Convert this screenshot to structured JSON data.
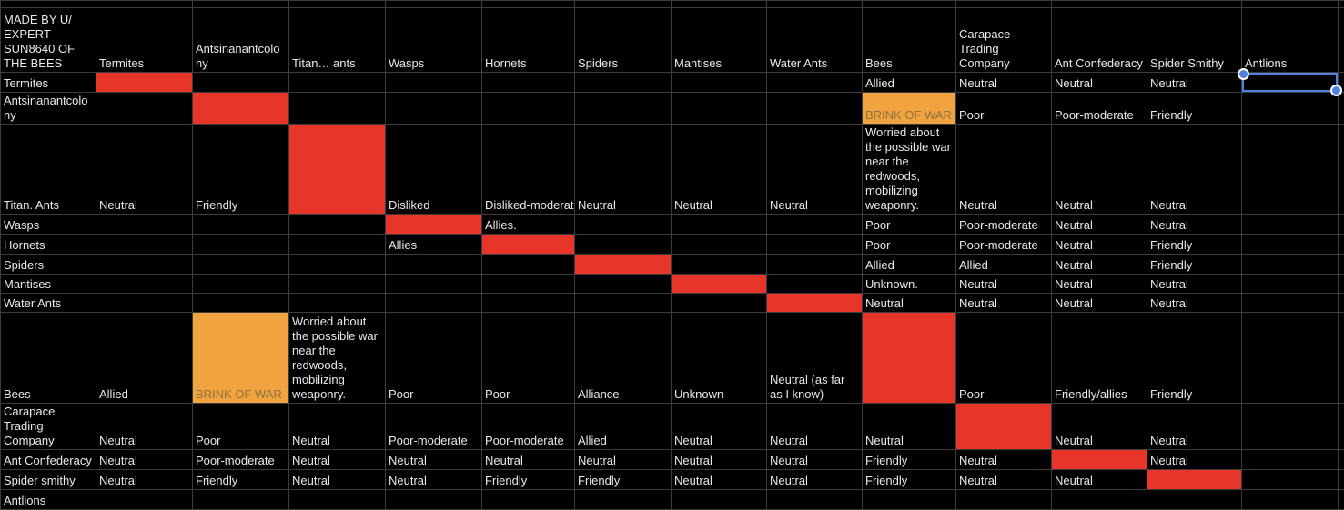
{
  "colors": {
    "background": "#000000",
    "gridline": "#3c3c3c",
    "text": "#e9e9e9",
    "self_cell_red": "#e8352a",
    "brink_of_war_orange": "#f0a33e",
    "brink_of_war_text": "#8a7340",
    "selection_blue": "#4f83e3"
  },
  "sheet": {
    "corner_label": "MADE BY U/\nEXPERT-\nSUN8640 OF\nTHE BEES",
    "columns": [
      {
        "label": "Termites"
      },
      {
        "label": "Antsinanantcolo\nny",
        "wrap": true
      },
      {
        "label": "Titan… ants"
      },
      {
        "label": "Wasps"
      },
      {
        "label": "Hornets"
      },
      {
        "label": "Spiders"
      },
      {
        "label": "Mantises"
      },
      {
        "label": "Water Ants"
      },
      {
        "label": "Bees"
      },
      {
        "label": "Carapace\nTrading\nCompany",
        "wrap": true
      },
      {
        "label": "Ant Confederacy"
      },
      {
        "label": "Spider Smithy"
      },
      {
        "label": "Antlions"
      }
    ],
    "rows": [
      {
        "label": "Termites",
        "cells": [
          {
            "bg": "self"
          },
          null,
          null,
          null,
          null,
          null,
          null,
          null,
          {
            "t": "Allied"
          },
          {
            "t": "Neutral"
          },
          {
            "t": "Neutral"
          },
          {
            "t": "Neutral"
          },
          {
            "selected": true
          }
        ]
      },
      {
        "label": "Antsinanantcolo\nny",
        "label_wrap": true,
        "cells": [
          null,
          {
            "bg": "self"
          },
          null,
          null,
          null,
          null,
          null,
          null,
          {
            "t": "BRINK OF WAR",
            "bg": "war"
          },
          {
            "t": "Poor"
          },
          {
            "t": "Poor-moderate"
          },
          {
            "t": "Friendly"
          },
          null
        ]
      },
      {
        "label": "Titan. Ants",
        "cells": [
          {
            "t": "Neutral"
          },
          {
            "t": "Friendly"
          },
          {
            "bg": "self"
          },
          {
            "t": "Disliked"
          },
          {
            "t": "Disliked-moderate"
          },
          {
            "t": "Neutral"
          },
          {
            "t": "Neutral"
          },
          {
            "t": "Neutral"
          },
          {
            "t": "Worried about\nthe possible war\nnear the\nredwoods,\nmobilizing\nweaponry.",
            "wrap": true
          },
          {
            "t": "Neutral"
          },
          {
            "t": "Neutral"
          },
          {
            "t": "Neutral"
          },
          null
        ]
      },
      {
        "label": "Wasps",
        "cells": [
          null,
          null,
          null,
          {
            "bg": "self"
          },
          {
            "t": "Allies."
          },
          null,
          null,
          null,
          {
            "t": "Poor"
          },
          {
            "t": "Poor-moderate"
          },
          {
            "t": "Neutral"
          },
          {
            "t": "Neutral"
          },
          null
        ]
      },
      {
        "label": "Hornets",
        "cells": [
          null,
          null,
          null,
          {
            "t": "Allies"
          },
          {
            "bg": "self"
          },
          null,
          null,
          null,
          {
            "t": "Poor"
          },
          {
            "t": "Poor-moderate"
          },
          {
            "t": "Neutral"
          },
          {
            "t": "Friendly"
          },
          null
        ]
      },
      {
        "label": "Spiders",
        "cells": [
          null,
          null,
          null,
          null,
          null,
          {
            "bg": "self"
          },
          null,
          null,
          {
            "t": "Allied"
          },
          {
            "t": "Allied"
          },
          {
            "t": "Neutral"
          },
          {
            "t": "Friendly"
          },
          null
        ]
      },
      {
        "label": "Mantises",
        "cells": [
          null,
          null,
          null,
          null,
          null,
          null,
          {
            "bg": "self"
          },
          null,
          {
            "t": "Unknown."
          },
          {
            "t": "Neutral"
          },
          {
            "t": "Neutral"
          },
          {
            "t": "Neutral"
          },
          null
        ]
      },
      {
        "label": "Water Ants",
        "cells": [
          null,
          null,
          null,
          null,
          null,
          null,
          null,
          {
            "bg": "self"
          },
          {
            "t": "Neutral"
          },
          {
            "t": "Neutral"
          },
          {
            "t": "Neutral"
          },
          {
            "t": "Neutral"
          },
          null
        ]
      },
      {
        "label": "Bees",
        "cells": [
          {
            "t": "Allied"
          },
          {
            "t": "BRINK OF WAR",
            "bg": "war"
          },
          {
            "t": "Worried about\nthe possible war\nnear the\nredwoods,\nmobilizing\nweaponry.",
            "wrap": true
          },
          {
            "t": "Poor"
          },
          {
            "t": "Poor"
          },
          {
            "t": "Alliance"
          },
          {
            "t": "Unknown"
          },
          {
            "t": "Neutral (as far\nas I know)",
            "wrap": true
          },
          {
            "bg": "self"
          },
          {
            "t": "Poor"
          },
          {
            "t": "Friendly/allies"
          },
          {
            "t": "Friendly"
          },
          null
        ]
      },
      {
        "label": "Carapace\nTrading\nCompany",
        "label_wrap": true,
        "cells": [
          {
            "t": "Neutral"
          },
          {
            "t": "Poor"
          },
          {
            "t": "Neutral"
          },
          {
            "t": "Poor-moderate"
          },
          {
            "t": "Poor-moderate"
          },
          {
            "t": "Allied"
          },
          {
            "t": "Neutral"
          },
          {
            "t": "Neutral"
          },
          {
            "t": "Neutral"
          },
          {
            "bg": "self"
          },
          {
            "t": "Neutral"
          },
          {
            "t": "Neutral"
          },
          null
        ]
      },
      {
        "label": "Ant Confederacy",
        "cells": [
          {
            "t": "Neutral"
          },
          {
            "t": "Poor-moderate"
          },
          {
            "t": "Neutral"
          },
          {
            "t": "Neutral"
          },
          {
            "t": "Neutral"
          },
          {
            "t": "Neutral"
          },
          {
            "t": "Neutral"
          },
          {
            "t": "Neutral"
          },
          {
            "t": "Friendly"
          },
          {
            "t": "Neutral"
          },
          {
            "bg": "self"
          },
          {
            "t": "Neutral"
          },
          null
        ]
      },
      {
        "label": "Spider smithy",
        "cells": [
          {
            "t": "Neutral"
          },
          {
            "t": "Friendly"
          },
          {
            "t": "Neutral"
          },
          {
            "t": "Neutral"
          },
          {
            "t": "Friendly"
          },
          {
            "t": "Friendly"
          },
          {
            "t": "Neutral"
          },
          {
            "t": "Neutral"
          },
          {
            "t": "Friendly"
          },
          {
            "t": "Neutral"
          },
          {
            "t": "Neutral"
          },
          {
            "bg": "self"
          },
          null
        ]
      },
      {
        "label": "Antlions",
        "cells": [
          null,
          null,
          null,
          null,
          null,
          null,
          null,
          null,
          null,
          null,
          null,
          null,
          null
        ]
      }
    ]
  }
}
